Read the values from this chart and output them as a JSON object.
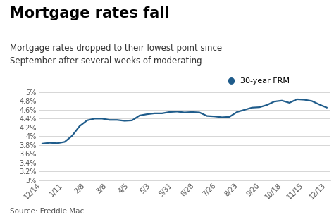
{
  "title": "Mortgage rates fall",
  "subtitle": "Mortgage rates dropped to their lowest point since\nSeptember after several weeks of moderating",
  "source": "Source: Freddie Mac",
  "legend_label": "30-year FRM",
  "line_color": "#1f5c8b",
  "legend_dot_color": "#1f5c8b",
  "background_color": "#ffffff",
  "x_labels": [
    "12/14",
    "1/11",
    "2/8",
    "3/8",
    "4/5",
    "5/3",
    "5/31",
    "6/28",
    "7/26",
    "8/23",
    "9/20",
    "10/18",
    "11/15",
    "12/13"
  ],
  "y_values": [
    3.83,
    3.85,
    3.84,
    3.87,
    4.01,
    4.23,
    4.36,
    4.4,
    4.4,
    4.37,
    4.37,
    4.35,
    4.36,
    4.47,
    4.5,
    4.52,
    4.52,
    4.55,
    4.56,
    4.54,
    4.55,
    4.54,
    4.46,
    4.45,
    4.43,
    4.44,
    4.55,
    4.6,
    4.65,
    4.66,
    4.71,
    4.79,
    4.81,
    4.76,
    4.84,
    4.83,
    4.8,
    4.72,
    4.65
  ],
  "ylim": [
    3.0,
    5.05
  ],
  "yticks": [
    3.0,
    3.2,
    3.4,
    3.6,
    3.8,
    4.0,
    4.2,
    4.4,
    4.6,
    4.8,
    5.0
  ],
  "ytick_labels": [
    "3%",
    "3.2%",
    "3.4%",
    "3.6%",
    "3.8%",
    "4%",
    "4.2%",
    "4.4%",
    "4.6%",
    "4.8%",
    "5%"
  ],
  "grid_color": "#d0d0d0",
  "title_fontsize": 15,
  "subtitle_fontsize": 8.5,
  "axis_fontsize": 7,
  "source_fontsize": 7.5,
  "legend_fontsize": 8
}
